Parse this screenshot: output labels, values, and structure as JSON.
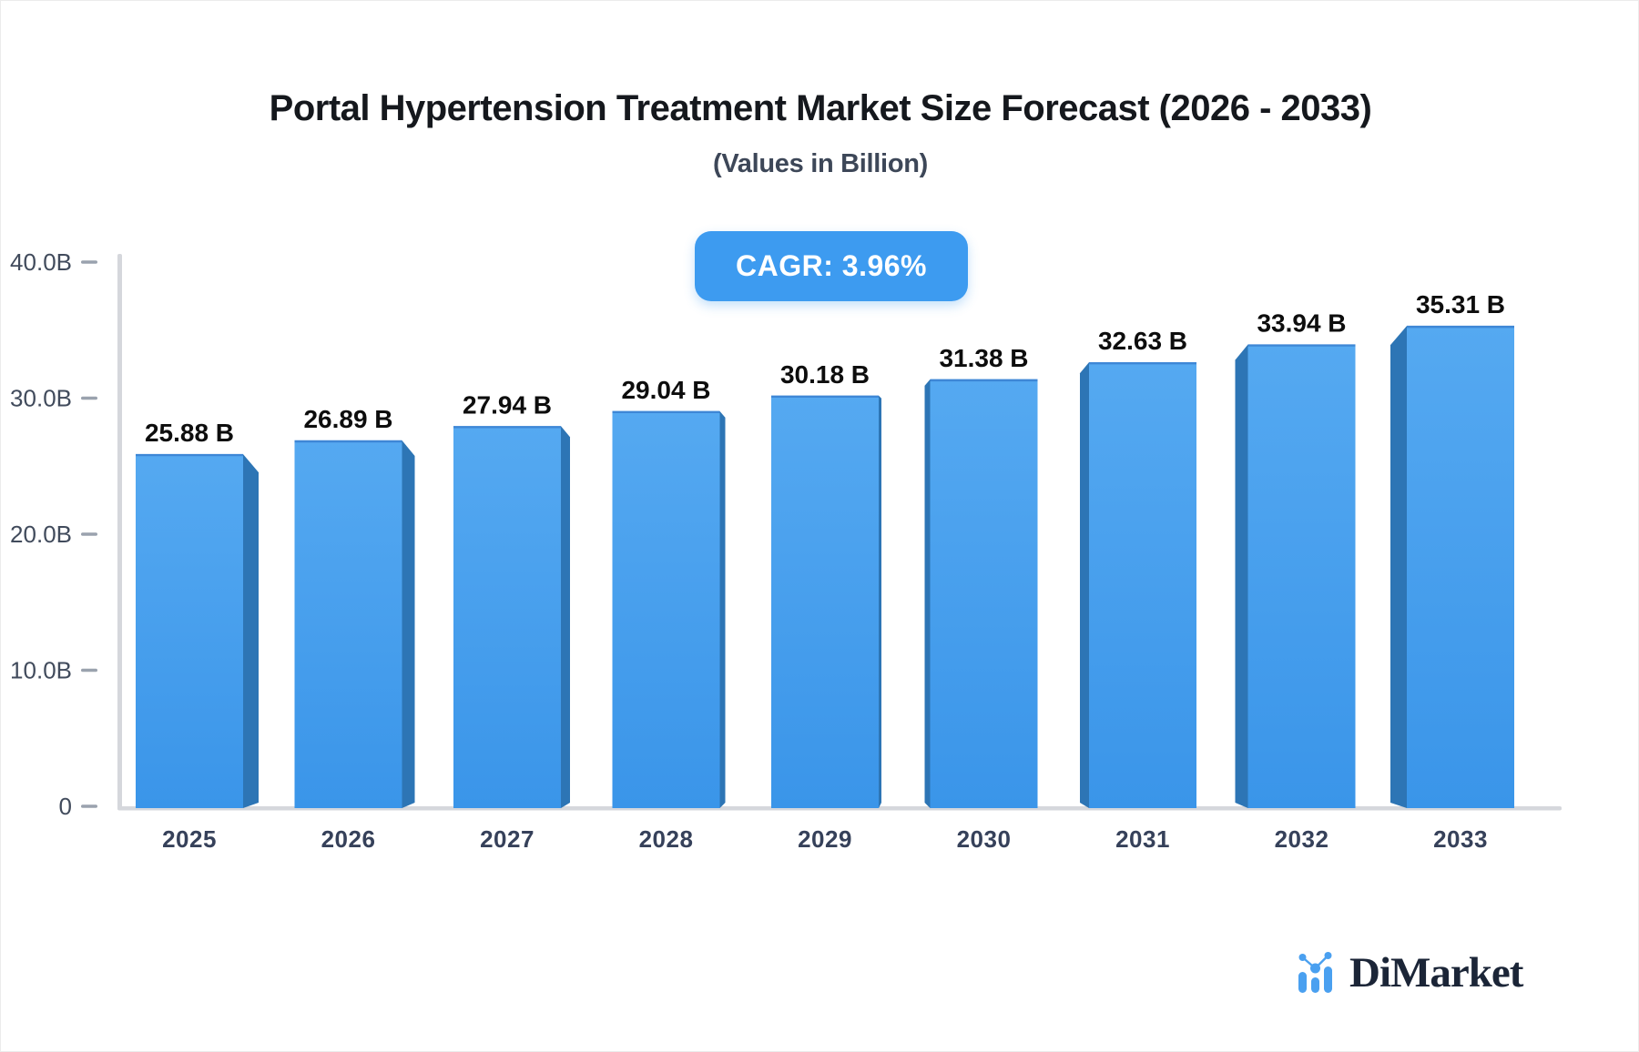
{
  "header": {
    "title": "Portal Hypertension Treatment Market Size Forecast (2026 - 2033)",
    "subtitle": "(Values in Billion)"
  },
  "badge": {
    "label": "CAGR: 3.96%",
    "cagr_value": "3.96%",
    "color": "#3d9bf0"
  },
  "chart_data": {
    "type": "bar",
    "title": "Portal Hypertension Treatment Market Size Forecast (2026 - 2033)",
    "subtitle": "(Values in Billion)",
    "unit": "Billion",
    "categories": [
      "2025",
      "2026",
      "2027",
      "2028",
      "2029",
      "2030",
      "2031",
      "2032",
      "2033"
    ],
    "values": [
      25.88,
      26.89,
      27.94,
      29.04,
      30.18,
      31.38,
      32.63,
      33.94,
      35.31
    ],
    "value_labels": [
      "25.88 B",
      "26.89 B",
      "27.94 B",
      "29.04 B",
      "30.18 B",
      "31.38 B",
      "32.63 B",
      "33.94 B",
      "35.31 B"
    ],
    "ytick_labels": [
      "40.0B",
      "30.0B",
      "20.0B",
      "10.0B",
      "0"
    ],
    "ytick_values": [
      40,
      30,
      20,
      10,
      0
    ],
    "ylim": [
      0,
      40
    ],
    "grid": false,
    "legend": "none",
    "bar_style": "3d-perspective",
    "colors": {
      "bar_face_top": "#55a9f1",
      "bar_face_bottom": "#3a95e9",
      "bar_top_edge": "#3e87d6",
      "bar_side": "#2d75b5",
      "axis_line": "#d5d7dc",
      "tick_mark": "#9aa2ae",
      "ytick_text": "#414b5c",
      "xtick_text": "#36415a",
      "value_text": "#0d0d0d"
    }
  },
  "logo": {
    "text": "DiMarket",
    "icon": "mini-bar-chart-icon",
    "icon_color": "#4aa0f0",
    "text_color": "#1b2537"
  }
}
